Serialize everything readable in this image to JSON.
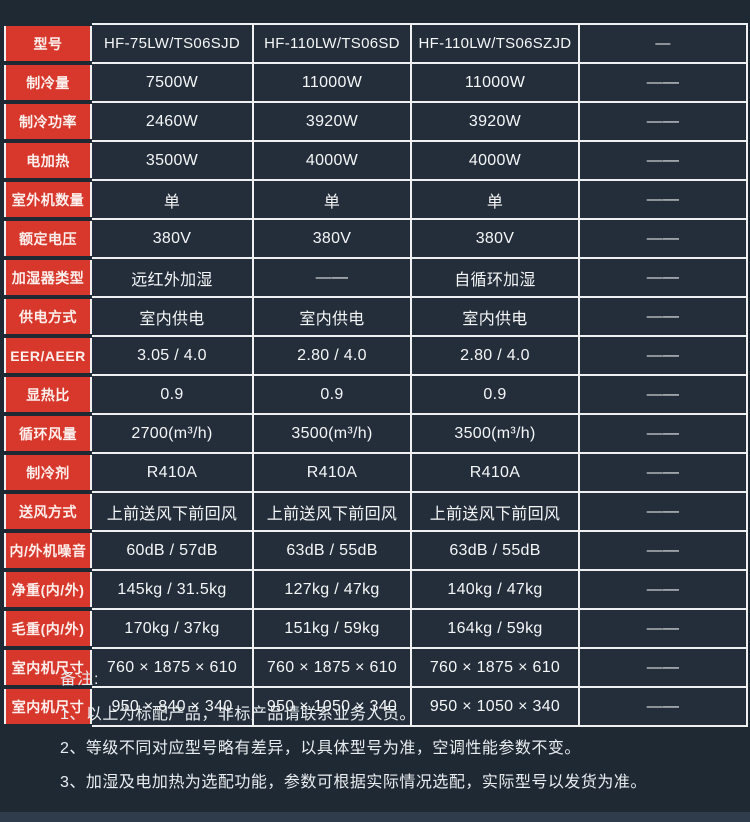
{
  "colors": {
    "page_background": "#1f2933",
    "cell_background": "#232e3a",
    "header_red": "#d8382b",
    "grid_line": "#eef0f2",
    "text": "#f4f6f7"
  },
  "table": {
    "rows": [
      {
        "label": "型号",
        "values": [
          "HF-75LW/TS06SJD",
          "HF-110LW/TS06SD",
          "HF-110LW/TS06SZJD",
          "—"
        ]
      },
      {
        "label": "制冷量",
        "values": [
          "7500W",
          "11000W",
          "11000W",
          "——"
        ]
      },
      {
        "label": "制冷功率",
        "values": [
          "2460W",
          "3920W",
          "3920W",
          "——"
        ]
      },
      {
        "label": "电加热",
        "values": [
          "3500W",
          "4000W",
          "4000W",
          "——"
        ]
      },
      {
        "label": "室外机数量",
        "values": [
          "单",
          "单",
          "单",
          "——"
        ]
      },
      {
        "label": "额定电压",
        "values": [
          "380V",
          "380V",
          "380V",
          "——"
        ]
      },
      {
        "label": "加湿器类型",
        "values": [
          "远红外加湿",
          "——",
          "自循环加湿",
          "——"
        ]
      },
      {
        "label": "供电方式",
        "values": [
          "室内供电",
          "室内供电",
          "室内供电",
          "——"
        ]
      },
      {
        "label": "EER/AEER",
        "values": [
          "3.05 / 4.0",
          "2.80 / 4.0",
          "2.80 / 4.0",
          "——"
        ]
      },
      {
        "label": "显热比",
        "values": [
          "0.9",
          "0.9",
          "0.9",
          "——"
        ]
      },
      {
        "label": "循环风量",
        "values": [
          "2700(m³/h)",
          "3500(m³/h)",
          "3500(m³/h)",
          "——"
        ]
      },
      {
        "label": "制冷剂",
        "values": [
          "R410A",
          "R410A",
          "R410A",
          "——"
        ]
      },
      {
        "label": "送风方式",
        "values": [
          "上前送风下前回风",
          "上前送风下前回风",
          "上前送风下前回风",
          "——"
        ]
      },
      {
        "label": "内/外机噪音",
        "values": [
          "60dB / 57dB",
          "63dB / 55dB",
          "63dB / 55dB",
          "——"
        ]
      },
      {
        "label": "净重(内/外)",
        "values": [
          "145kg / 31.5kg",
          "127kg / 47kg",
          "140kg / 47kg",
          "——"
        ]
      },
      {
        "label": "毛重(内/外)",
        "values": [
          "170kg / 37kg",
          "151kg / 59kg",
          "164kg / 59kg",
          "——"
        ]
      },
      {
        "label": "室内机尺寸",
        "values": [
          "760 × 1875 × 610",
          "760 × 1875 × 610",
          "760 × 1875 × 610",
          "——"
        ]
      },
      {
        "label": "室内机尺寸",
        "values": [
          "950 × 840 × 340",
          "950 × 1050 × 340",
          "950 × 1050 × 340",
          "——"
        ]
      }
    ]
  },
  "notes": {
    "title": "备注:",
    "items": [
      "1、以上为标配产品，非标产品请联系业务人员。",
      "2、等级不同对应型号略有差异，以具体型号为准，空调性能参数不变。",
      "3、加湿及电加热为选配功能，参数可根据实际情况选配，实际型号以发货为准。"
    ]
  }
}
